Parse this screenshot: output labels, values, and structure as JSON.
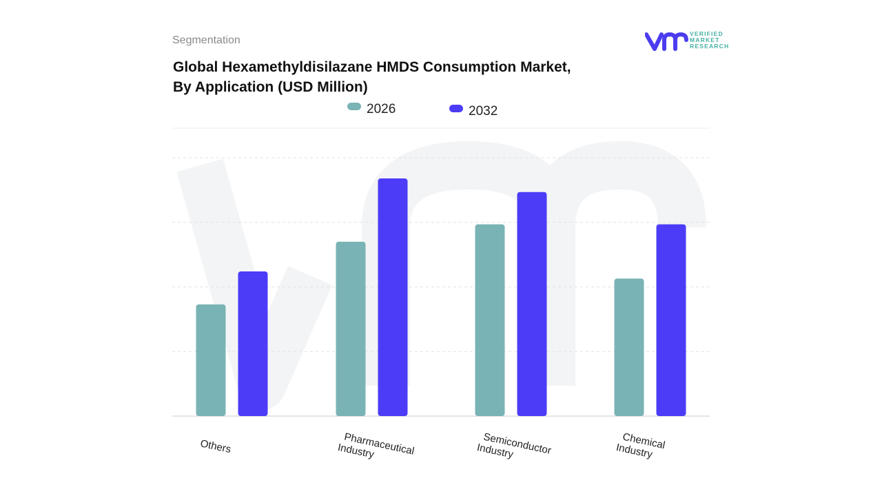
{
  "header": {
    "section": "Segmentation",
    "title_line1": "Global Hexamethyldisilazane HMDS Consumption Market,",
    "title_line2": "By Application (USD Million)"
  },
  "logo": {
    "text_line1": "VERIFIED",
    "text_line2": "MARKET",
    "text_line3": "RESEARCH",
    "colors": {
      "mark": "#4c3cf0",
      "text": "#45b0a5"
    }
  },
  "chart_data": {
    "type": "bar",
    "title": "Global Hexamethyldisilazane HMDS Consumption Market, By Application (USD Million)",
    "categories": [
      "Others",
      "Pharmaceutical Industry",
      "Semiconductor Industry",
      "Chemical Industry"
    ],
    "category_lines": [
      [
        "Others"
      ],
      [
        "Pharmaceutical",
        "Industry"
      ],
      [
        "Semiconductor",
        "Industry"
      ],
      [
        "Chemical",
        "Industry"
      ]
    ],
    "series": [
      {
        "name": "2026",
        "color": "#7ab3b5",
        "values": [
          1.73,
          2.7,
          2.97,
          2.13
        ]
      },
      {
        "name": "2032",
        "color": "#4c3cf7",
        "values": [
          2.24,
          3.68,
          3.47,
          2.97
        ]
      }
    ],
    "ylim": [
      0,
      4
    ],
    "grid": true,
    "legend": "top-center",
    "xlabel": "",
    "ylabel": ""
  }
}
